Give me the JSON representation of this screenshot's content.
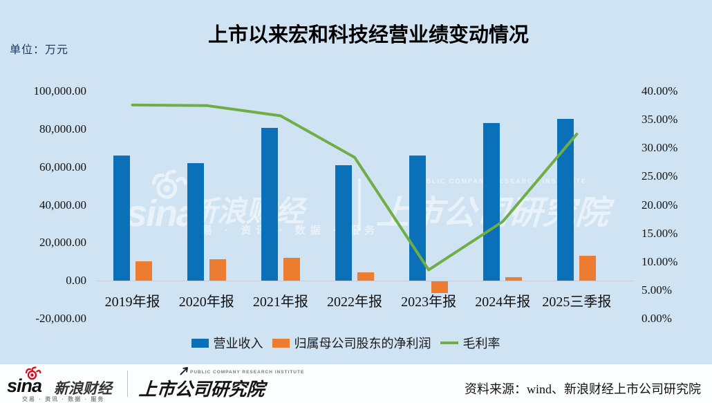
{
  "header": {
    "unit_label": "单位：万元",
    "title": "上市以来宏和科技经营业绩变动情况"
  },
  "chart_data": {
    "type": "bar",
    "title": "上市以来宏和科技经营业绩变动情况",
    "unit": "万元",
    "categories": [
      "2019年报",
      "2020年报",
      "2021年报",
      "2022年报",
      "2023年报",
      "2024年报",
      "2025三季报"
    ],
    "series": [
      {
        "name": "营业收入",
        "type": "bar",
        "axis": "left",
        "color": "#0a70b8",
        "values": [
          66300,
          62300,
          81000,
          61400,
          66300,
          83600,
          85800
        ]
      },
      {
        "name": "归属母公司股东的净利润",
        "type": "bar",
        "axis": "left",
        "color": "#ec7c30",
        "values": [
          10600,
          11600,
          12300,
          4900,
          -6000,
          2200,
          13700
        ]
      },
      {
        "name": "毛利率",
        "type": "line",
        "axis": "right",
        "color": "#70ad47",
        "values": [
          37.7,
          37.6,
          35.8,
          28.5,
          8.7,
          17.2,
          32.6
        ]
      }
    ],
    "left_axis": {
      "min": -20000,
      "max": 100000,
      "tick_step": 20000,
      "tick_labels": [
        "100,000.00",
        "80,000.00",
        "60,000.00",
        "40,000.00",
        "20,000.00",
        "0.00",
        "-20,000.00"
      ]
    },
    "right_axis": {
      "min": 0,
      "max": 40,
      "tick_step": 5,
      "tick_labels": [
        "40.00%",
        "35.00%",
        "30.00%",
        "25.00%",
        "20.00%",
        "15.00%",
        "10.00%",
        "5.00%",
        "0.00%"
      ]
    },
    "legend_position": "bottom",
    "grid": false
  },
  "watermark": {
    "sina_text": "sina",
    "sina_cn": "新浪财经",
    "sina_tagline": "交易 · 资讯 · 数据 · 服务",
    "institute_en": "PUBLIC COMPANY RESEARCH INSTITUTE",
    "institute_cn": "上市公司研究院"
  },
  "footer": {
    "sina_text": "sina",
    "sina_cn": "新浪财经",
    "sina_tagline": "交易 · 资讯 · 数据 · 服务",
    "institute_en": "PUBLIC COMPANY RESEARCH INSTITUTE",
    "institute_cn": "上市公司研究院",
    "source": "资料来源：wind、新浪财经上市公司研究院"
  },
  "colors": {
    "background": "#cfe3f2",
    "bar_revenue": "#0a70b8",
    "bar_net_profit": "#ec7c30",
    "line_gross_margin": "#70ad47",
    "axis_line": "#c7ced5"
  }
}
